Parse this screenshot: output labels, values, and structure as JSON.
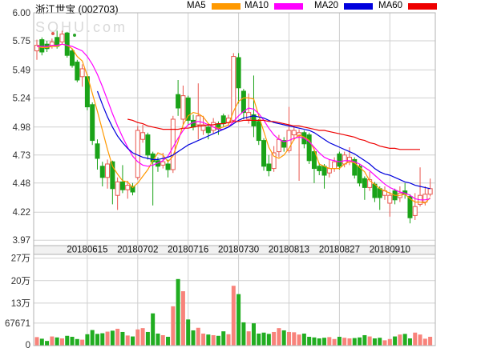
{
  "window": {
    "title": "浙江世宝 (002703)"
  },
  "watermark": {
    "text": "SOHU.com"
  },
  "legend": [
    {
      "label": "MA5",
      "color": "#ff9900"
    },
    {
      "label": "MA10",
      "color": "#ff00ff"
    },
    {
      "label": "MA20",
      "color": "#0000dd"
    },
    {
      "label": "MA60",
      "color": "#ee0000"
    }
  ],
  "chart_data": {
    "type": "candlestick+volume",
    "title": "浙江世宝 (002703)",
    "legend_position": "top",
    "grid": true,
    "price_axis": {
      "labels": [
        "6.00",
        "5.75",
        "5.49",
        "5.24",
        "4.98",
        "4.73",
        "4.48",
        "4.22",
        "3.97"
      ],
      "values": [
        6.0,
        5.75,
        5.49,
        5.24,
        4.98,
        4.73,
        4.48,
        4.22,
        3.97
      ],
      "max": 6.0,
      "min": 3.92
    },
    "volume_axis": {
      "labels": [
        "27万",
        "20万",
        "13万",
        "67671",
        "0"
      ],
      "values_wan": [
        27,
        20,
        13,
        6.7671,
        0
      ]
    },
    "x_labels": [
      "20180615",
      "20180702",
      "20180716",
      "20180730",
      "20180813",
      "20180827",
      "20180910"
    ],
    "x_label_indices": [
      10,
      20,
      30,
      40,
      50,
      60,
      70
    ],
    "colors": {
      "up": "#e9564e",
      "down": "#1aa318",
      "volume_up": "#f8837b",
      "volume_down": "#21ad21",
      "grid": "#cfcfcf",
      "border": "#b3b3b3",
      "band_bg": "#f1f1f1",
      "axis_text": "#333333",
      "date_text": "#111111"
    },
    "candles": [
      {
        "o": 5.66,
        "h": 5.76,
        "l": 5.58,
        "c": 5.71,
        "v": 2.4
      },
      {
        "o": 5.76,
        "h": 5.78,
        "l": 5.62,
        "c": 5.65,
        "v": 1.9
      },
      {
        "o": 5.72,
        "h": 5.75,
        "l": 5.65,
        "c": 5.68,
        "v": 1.2
      },
      {
        "o": 5.7,
        "h": 5.77,
        "l": 5.68,
        "c": 5.74,
        "v": 2.6
      },
      {
        "o": 5.78,
        "h": 5.84,
        "l": 5.68,
        "c": 5.7,
        "v": 2.3
      },
      {
        "o": 5.74,
        "h": 5.84,
        "l": 5.72,
        "c": 5.81,
        "v": 2.0
      },
      {
        "o": 5.82,
        "h": 5.83,
        "l": 5.6,
        "c": 5.62,
        "v": 2.8
      },
      {
        "o": 5.66,
        "h": 5.68,
        "l": 5.51,
        "c": 5.53,
        "v": 2.5
      },
      {
        "o": 5.56,
        "h": 5.58,
        "l": 5.38,
        "c": 5.4,
        "v": 1.8
      },
      {
        "o": 5.43,
        "h": 5.54,
        "l": 5.34,
        "c": 5.5,
        "v": 1.6
      },
      {
        "o": 5.43,
        "h": 5.45,
        "l": 5.13,
        "c": 5.16,
        "v": 3.3
      },
      {
        "o": 5.18,
        "h": 5.2,
        "l": 4.82,
        "c": 4.86,
        "v": 4.6
      },
      {
        "o": 4.83,
        "h": 4.87,
        "l": 4.6,
        "c": 4.7,
        "v": 3.4
      },
      {
        "o": 4.63,
        "h": 4.67,
        "l": 4.45,
        "c": 4.53,
        "v": 3.6
      },
      {
        "o": 4.53,
        "h": 4.69,
        "l": 4.43,
        "c": 4.65,
        "v": 4.1
      },
      {
        "o": 4.67,
        "h": 4.68,
        "l": 4.29,
        "c": 4.43,
        "v": 4.4
      },
      {
        "o": 4.37,
        "h": 4.53,
        "l": 4.24,
        "c": 4.49,
        "v": 5.0
      },
      {
        "o": 4.49,
        "h": 4.64,
        "l": 4.39,
        "c": 4.42,
        "v": 4.0
      },
      {
        "o": 4.42,
        "h": 4.5,
        "l": 4.34,
        "c": 4.46,
        "v": 2.9
      },
      {
        "o": 4.45,
        "h": 4.48,
        "l": 4.37,
        "c": 4.4,
        "v": 2.6
      },
      {
        "o": 4.53,
        "h": 4.99,
        "l": 4.51,
        "c": 4.95,
        "v": 4.8
      },
      {
        "o": 4.87,
        "h": 5.0,
        "l": 4.84,
        "c": 4.93,
        "v": 5.2
      },
      {
        "o": 4.91,
        "h": 4.93,
        "l": 4.69,
        "c": 4.73,
        "v": 4.0
      },
      {
        "o": 4.74,
        "h": 4.76,
        "l": 4.28,
        "c": 4.67,
        "v": 9.8
      },
      {
        "o": 4.68,
        "h": 4.71,
        "l": 4.58,
        "c": 4.63,
        "v": 3.5
      },
      {
        "o": 4.64,
        "h": 4.75,
        "l": 4.61,
        "c": 4.67,
        "v": 3.0
      },
      {
        "o": 4.65,
        "h": 4.69,
        "l": 4.53,
        "c": 4.6,
        "v": 2.5
      },
      {
        "o": 4.6,
        "h": 5.08,
        "l": 4.57,
        "c": 5.05,
        "v": 12.0
      },
      {
        "o": 5.27,
        "h": 5.4,
        "l": 5.08,
        "c": 5.15,
        "v": 20.5
      },
      {
        "o": 5.05,
        "h": 5.35,
        "l": 5.0,
        "c": 5.26,
        "v": 16.7
      },
      {
        "o": 5.24,
        "h": 5.26,
        "l": 5.0,
        "c": 5.04,
        "v": 7.9
      },
      {
        "o": 5.04,
        "h": 5.09,
        "l": 4.95,
        "c": 4.98,
        "v": 4.5
      },
      {
        "o": 5.0,
        "h": 5.37,
        "l": 4.87,
        "c": 5.08,
        "v": 5.3
      },
      {
        "o": 4.95,
        "h": 5.08,
        "l": 4.91,
        "c": 5.0,
        "v": 3.5
      },
      {
        "o": 4.98,
        "h": 5.01,
        "l": 4.87,
        "c": 4.93,
        "v": 3.2
      },
      {
        "o": 4.95,
        "h": 5.06,
        "l": 4.92,
        "c": 5.02,
        "v": 3.0
      },
      {
        "o": 5.01,
        "h": 5.03,
        "l": 4.91,
        "c": 4.96,
        "v": 2.8
      },
      {
        "o": 5.08,
        "h": 5.1,
        "l": 4.98,
        "c": 5.01,
        "v": 4.2
      },
      {
        "o": 5.02,
        "h": 5.09,
        "l": 4.99,
        "c": 5.06,
        "v": 3.3
      },
      {
        "o": 5.04,
        "h": 5.64,
        "l": 5.02,
        "c": 5.61,
        "v": 18.4
      },
      {
        "o": 5.6,
        "h": 5.64,
        "l": 5.19,
        "c": 5.33,
        "v": 15.8
      },
      {
        "o": 5.3,
        "h": 5.32,
        "l": 5.05,
        "c": 5.11,
        "v": 7.0
      },
      {
        "o": 5.05,
        "h": 5.28,
        "l": 5.01,
        "c": 5.11,
        "v": 4.2
      },
      {
        "o": 5.09,
        "h": 5.44,
        "l": 4.89,
        "c": 4.99,
        "v": 6.7
      },
      {
        "o": 5.03,
        "h": 5.05,
        "l": 4.82,
        "c": 4.86,
        "v": 3.5
      },
      {
        "o": 4.86,
        "h": 4.88,
        "l": 4.59,
        "c": 4.63,
        "v": 3.8
      },
      {
        "o": 4.65,
        "h": 4.73,
        "l": 4.54,
        "c": 4.59,
        "v": 3.4
      },
      {
        "o": 4.61,
        "h": 4.81,
        "l": 4.58,
        "c": 4.75,
        "v": 4.0
      },
      {
        "o": 4.76,
        "h": 4.91,
        "l": 4.71,
        "c": 4.87,
        "v": 5.2
      },
      {
        "o": 4.86,
        "h": 4.89,
        "l": 4.76,
        "c": 4.8,
        "v": 4.5
      },
      {
        "o": 4.77,
        "h": 5.16,
        "l": 4.75,
        "c": 4.95,
        "v": 4.0
      },
      {
        "o": 4.91,
        "h": 4.99,
        "l": 4.86,
        "c": 4.95,
        "v": 3.9
      },
      {
        "o": 4.9,
        "h": 4.96,
        "l": 4.5,
        "c": 4.93,
        "v": 3.2
      },
      {
        "o": 4.93,
        "h": 4.95,
        "l": 4.79,
        "c": 4.83,
        "v": 3.5
      },
      {
        "o": 4.91,
        "h": 4.93,
        "l": 4.65,
        "c": 4.68,
        "v": 2.5
      },
      {
        "o": 4.76,
        "h": 4.78,
        "l": 4.48,
        "c": 4.61,
        "v": 2.3
      },
      {
        "o": 4.63,
        "h": 4.66,
        "l": 4.55,
        "c": 4.59,
        "v": 2.0
      },
      {
        "o": 4.63,
        "h": 4.65,
        "l": 4.43,
        "c": 4.55,
        "v": 2.2
      },
      {
        "o": 4.57,
        "h": 4.69,
        "l": 4.53,
        "c": 4.61,
        "v": 2.4
      },
      {
        "o": 4.61,
        "h": 4.71,
        "l": 4.58,
        "c": 4.67,
        "v": 1.8
      },
      {
        "o": 4.74,
        "h": 4.76,
        "l": 4.6,
        "c": 4.63,
        "v": 2.5
      },
      {
        "o": 4.65,
        "h": 4.76,
        "l": 4.62,
        "c": 4.73,
        "v": 2.2
      },
      {
        "o": 4.67,
        "h": 4.8,
        "l": 4.64,
        "c": 4.71,
        "v": 2.0
      },
      {
        "o": 4.69,
        "h": 4.71,
        "l": 4.52,
        "c": 4.55,
        "v": 2.1
      },
      {
        "o": 4.63,
        "h": 4.65,
        "l": 4.45,
        "c": 4.48,
        "v": 2.3
      },
      {
        "o": 4.52,
        "h": 4.54,
        "l": 4.33,
        "c": 4.44,
        "v": 3.0
      },
      {
        "o": 4.44,
        "h": 4.58,
        "l": 4.41,
        "c": 4.51,
        "v": 2.6
      },
      {
        "o": 4.47,
        "h": 4.49,
        "l": 4.31,
        "c": 4.35,
        "v": 2.0
      },
      {
        "o": 4.43,
        "h": 4.45,
        "l": 4.24,
        "c": 4.35,
        "v": 2.2
      },
      {
        "o": 4.37,
        "h": 4.45,
        "l": 4.33,
        "c": 4.41,
        "v": 1.4
      },
      {
        "o": 4.3,
        "h": 4.4,
        "l": 4.18,
        "c": 4.37,
        "v": 1.8
      },
      {
        "o": 4.41,
        "h": 4.43,
        "l": 4.29,
        "c": 4.33,
        "v": 2.6
      },
      {
        "o": 4.35,
        "h": 4.45,
        "l": 4.31,
        "c": 4.39,
        "v": 3.2
      },
      {
        "o": 4.41,
        "h": 4.48,
        "l": 4.34,
        "c": 4.38,
        "v": 3.4
      },
      {
        "o": 4.36,
        "h": 4.38,
        "l": 4.12,
        "c": 4.17,
        "v": 2.0
      },
      {
        "o": 4.19,
        "h": 4.39,
        "l": 4.15,
        "c": 4.27,
        "v": 3.8
      },
      {
        "o": 4.29,
        "h": 4.62,
        "l": 4.27,
        "c": 4.37,
        "v": 3.2
      },
      {
        "o": 4.31,
        "h": 4.45,
        "l": 4.28,
        "c": 4.38,
        "v": 1.9
      },
      {
        "o": 4.38,
        "h": 4.52,
        "l": 4.36,
        "c": 4.43,
        "v": 2.5
      }
    ],
    "ma5": [
      5.7,
      5.69,
      5.69,
      5.7,
      5.7,
      5.72,
      5.71,
      5.68,
      5.61,
      5.57,
      5.44,
      5.28,
      5.12,
      4.95,
      4.78,
      4.63,
      4.56,
      4.5,
      4.49,
      4.44,
      4.48,
      4.54,
      4.6,
      4.68,
      4.75,
      4.73,
      4.67,
      4.72,
      4.85,
      5.0,
      5.08,
      5.11,
      5.1,
      5.07,
      5.01,
      4.98,
      4.97,
      4.98,
      5.0,
      5.12,
      5.21,
      5.24,
      5.24,
      5.23,
      5.08,
      4.94,
      4.8,
      4.72,
      4.7,
      4.73,
      4.79,
      4.87,
      4.91,
      4.89,
      4.86,
      4.78,
      4.65,
      4.63,
      4.61,
      4.61,
      4.61,
      4.65,
      4.67,
      4.66,
      4.62,
      4.58,
      4.5,
      4.47,
      4.43,
      4.41,
      4.39,
      4.37,
      4.37,
      4.38,
      4.34,
      4.31,
      4.31,
      4.3,
      4.35
    ],
    "ma10": [
      5.7,
      5.7,
      5.7,
      5.71,
      5.71,
      5.72,
      5.71,
      5.7,
      5.68,
      5.66,
      5.61,
      5.54,
      5.45,
      5.34,
      5.22,
      5.1,
      4.99,
      4.89,
      4.8,
      4.72,
      4.67,
      4.64,
      4.63,
      4.64,
      4.66,
      4.68,
      4.72,
      4.8,
      4.88,
      4.95,
      5.0,
      5.02,
      5.03,
      5.02,
      5.0,
      4.98,
      4.96,
      4.96,
      4.98,
      5.03,
      5.08,
      5.12,
      5.15,
      5.14,
      5.1,
      5.04,
      4.97,
      4.91,
      4.87,
      4.85,
      4.86,
      4.88,
      4.89,
      4.88,
      4.85,
      4.8,
      4.75,
      4.71,
      4.69,
      4.68,
      4.67,
      4.68,
      4.68,
      4.67,
      4.65,
      4.62,
      4.59,
      4.55,
      4.51,
      4.47,
      4.44,
      4.42,
      4.4,
      4.39,
      4.37,
      4.34,
      4.33,
      4.33,
      4.34
    ],
    "ma20": [
      null,
      null,
      null,
      null,
      null,
      null,
      null,
      null,
      null,
      null,
      null,
      null,
      5.3,
      5.18,
      5.07,
      4.98,
      4.9,
      4.84,
      4.79,
      4.75,
      4.73,
      4.71,
      4.7,
      4.69,
      4.69,
      4.7,
      4.71,
      4.73,
      4.76,
      4.79,
      4.82,
      4.84,
      4.86,
      4.88,
      4.9,
      4.92,
      4.94,
      4.96,
      4.98,
      5.01,
      5.04,
      5.06,
      5.07,
      5.08,
      5.07,
      5.06,
      5.04,
      5.02,
      5.01,
      5.0,
      4.99,
      4.98,
      4.97,
      4.96,
      4.95,
      4.93,
      4.9,
      4.87,
      4.84,
      4.82,
      4.8,
      4.78,
      4.76,
      4.74,
      4.71,
      4.68,
      4.65,
      4.61,
      4.58,
      4.56,
      4.55,
      4.53,
      4.51,
      4.49,
      4.48,
      4.46,
      4.45,
      4.44,
      4.43
    ],
    "ma60": [
      null,
      null,
      null,
      null,
      null,
      null,
      null,
      null,
      null,
      null,
      null,
      null,
      null,
      null,
      null,
      null,
      null,
      null,
      5.05,
      5.04,
      5.02,
      5.01,
      4.99,
      4.98,
      4.97,
      4.96,
      4.96,
      4.96,
      4.96,
      4.97,
      4.97,
      4.98,
      4.99,
      4.99,
      5.0,
      5.0,
      5.01,
      5.01,
      5.02,
      5.03,
      5.03,
      5.04,
      5.04,
      5.04,
      5.04,
      5.04,
      5.03,
      5.03,
      5.02,
      5.01,
      5.0,
      4.99,
      4.99,
      4.98,
      4.97,
      4.96,
      4.95,
      4.95,
      4.94,
      4.93,
      4.92,
      4.91,
      4.9,
      4.89,
      4.87,
      4.86,
      4.84,
      4.83,
      4.81,
      4.8,
      4.79,
      4.79,
      4.78,
      4.78,
      4.78,
      4.78,
      4.78,
      null,
      null
    ]
  }
}
